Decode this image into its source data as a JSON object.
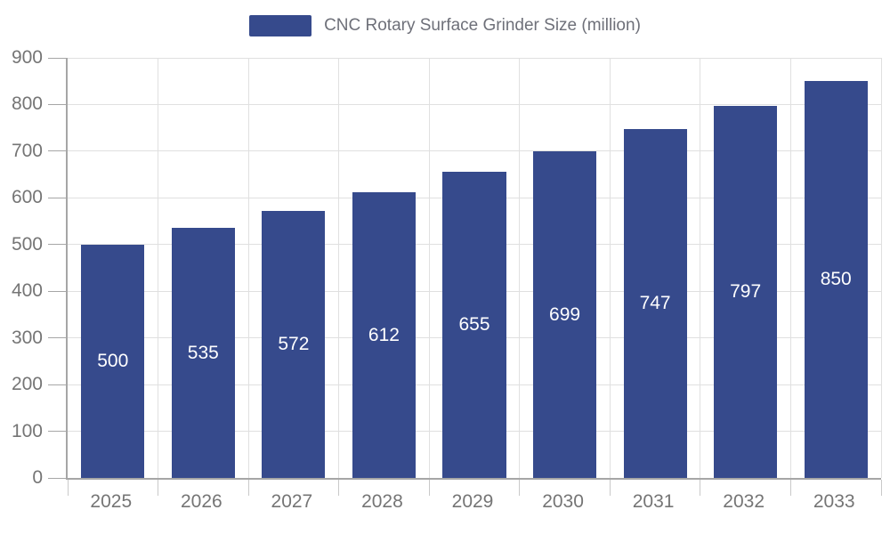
{
  "chart": {
    "legend_label": "CNC Rotary Surface Grinder Size (million)"
  },
  "chart_data": {
    "type": "bar",
    "title": "CNC Rotary Surface Grinder Size (million)",
    "series_name": "CNC Rotary Surface Grinder Size (million)",
    "categories": [
      "2025",
      "2026",
      "2027",
      "2028",
      "2029",
      "2030",
      "2031",
      "2032",
      "2033"
    ],
    "values": [
      500,
      535,
      572,
      612,
      655,
      699,
      747,
      797,
      850
    ],
    "xlabel": "",
    "ylabel": "",
    "ylim": [
      0,
      900
    ],
    "ytick_step": 100,
    "grid": "on",
    "legend_position": "top-center",
    "bar_width_fraction": 0.7,
    "bar_color": "#364A8C",
    "bar_label_color": "#FFFFFF",
    "axis_label_color": "#757575",
    "legend_text_color": "#6E7079",
    "gridline_color": "#E0E0E0",
    "tick_color": "#C9C9C9",
    "axis_line_color": "#A6A6A6"
  }
}
